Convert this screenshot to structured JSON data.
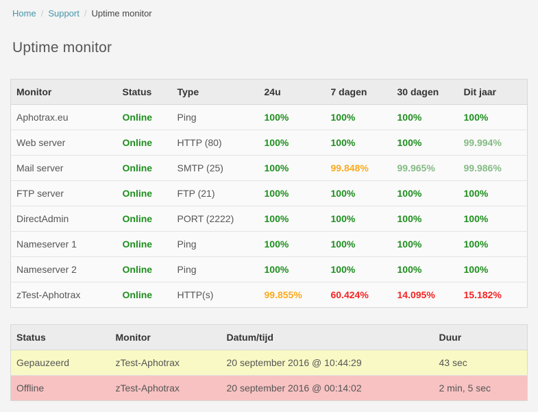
{
  "breadcrumb": {
    "separator": "/",
    "items": [
      {
        "label": "Home",
        "link": true
      },
      {
        "label": "Support",
        "link": true
      },
      {
        "label": "Uptime monitor",
        "link": false
      }
    ]
  },
  "page": {
    "title": "Uptime monitor"
  },
  "colors": {
    "link": "#4596ab",
    "green": "#1e8e1e",
    "lightgreen": "#85bb85",
    "orange": "#fbaa1d",
    "red": "#f52322",
    "row_yellow": "#f9f9c5",
    "row_red": "#f8c2c2",
    "page_bg": "#f4f4f4",
    "table_bg": "#fafafa",
    "header_bg": "#ececec"
  },
  "uptime_table": {
    "headers": [
      "Monitor",
      "Status",
      "Type",
      "24u",
      "7 dagen",
      "30 dagen",
      "Dit jaar"
    ],
    "rows": [
      {
        "monitor": "Aphotrax.eu",
        "status": "Online",
        "type": "Ping",
        "values": [
          {
            "text": "100%",
            "color": "green"
          },
          {
            "text": "100%",
            "color": "green"
          },
          {
            "text": "100%",
            "color": "green"
          },
          {
            "text": "100%",
            "color": "green"
          }
        ]
      },
      {
        "monitor": "Web server",
        "status": "Online",
        "type": "HTTP (80)",
        "values": [
          {
            "text": "100%",
            "color": "green"
          },
          {
            "text": "100%",
            "color": "green"
          },
          {
            "text": "100%",
            "color": "green"
          },
          {
            "text": "99.994%",
            "color": "lightgreen"
          }
        ]
      },
      {
        "monitor": "Mail server",
        "status": "Online",
        "type": "SMTP (25)",
        "values": [
          {
            "text": "100%",
            "color": "green"
          },
          {
            "text": "99.848%",
            "color": "orange"
          },
          {
            "text": "99.965%",
            "color": "lightgreen"
          },
          {
            "text": "99.986%",
            "color": "lightgreen"
          }
        ]
      },
      {
        "monitor": "FTP server",
        "status": "Online",
        "type": "FTP (21)",
        "values": [
          {
            "text": "100%",
            "color": "green"
          },
          {
            "text": "100%",
            "color": "green"
          },
          {
            "text": "100%",
            "color": "green"
          },
          {
            "text": "100%",
            "color": "green"
          }
        ]
      },
      {
        "monitor": "DirectAdmin",
        "status": "Online",
        "type": "PORT (2222)",
        "values": [
          {
            "text": "100%",
            "color": "green"
          },
          {
            "text": "100%",
            "color": "green"
          },
          {
            "text": "100%",
            "color": "green"
          },
          {
            "text": "100%",
            "color": "green"
          }
        ]
      },
      {
        "monitor": "Nameserver 1",
        "status": "Online",
        "type": "Ping",
        "values": [
          {
            "text": "100%",
            "color": "green"
          },
          {
            "text": "100%",
            "color": "green"
          },
          {
            "text": "100%",
            "color": "green"
          },
          {
            "text": "100%",
            "color": "green"
          }
        ]
      },
      {
        "monitor": "Nameserver 2",
        "status": "Online",
        "type": "Ping",
        "values": [
          {
            "text": "100%",
            "color": "green"
          },
          {
            "text": "100%",
            "color": "green"
          },
          {
            "text": "100%",
            "color": "green"
          },
          {
            "text": "100%",
            "color": "green"
          }
        ]
      },
      {
        "monitor": "zTest-Aphotrax",
        "status": "Online",
        "type": "HTTP(s)",
        "values": [
          {
            "text": "99.855%",
            "color": "orange"
          },
          {
            "text": "60.424%",
            "color": "red"
          },
          {
            "text": "14.095%",
            "color": "red"
          },
          {
            "text": "15.182%",
            "color": "red"
          }
        ]
      }
    ]
  },
  "events_table": {
    "headers": [
      "Status",
      "Monitor",
      "Datum/tijd",
      "Duur"
    ],
    "rows": [
      {
        "status": "Gepauzeerd",
        "monitor": "zTest-Aphotrax",
        "datetime": "20 september 2016 @ 10:44:29",
        "duration": "43 sec",
        "highlight": "yellow"
      },
      {
        "status": "Offline",
        "monitor": "zTest-Aphotrax",
        "datetime": "20 september 2016 @ 00:14:02",
        "duration": "2 min, 5 sec",
        "highlight": "red"
      }
    ]
  }
}
